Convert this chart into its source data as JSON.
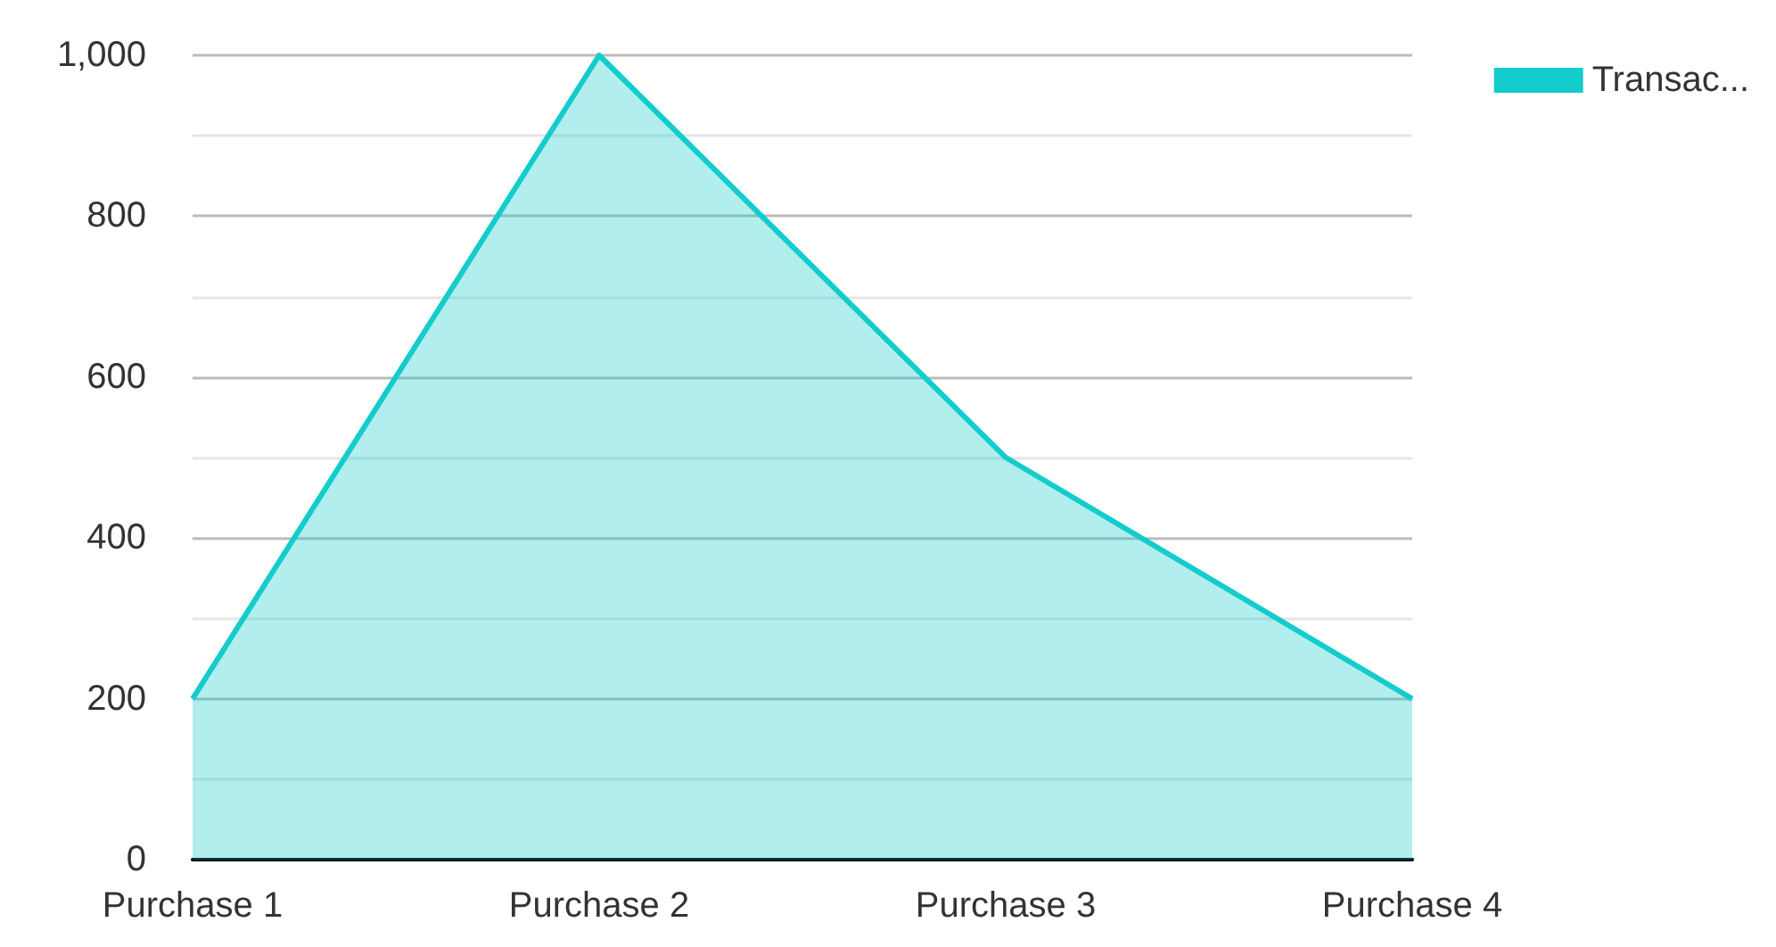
{
  "chart_data": {
    "type": "area",
    "categories": [
      "Purchase 1",
      "Purchase 2",
      "Purchase 3",
      "Purchase 4"
    ],
    "series": [
      {
        "name": "Transac...",
        "color": "#14cccc",
        "values": [
          200,
          1000,
          500,
          200
        ]
      }
    ],
    "ylim": [
      0,
      1000
    ],
    "yticks": [
      0,
      200,
      400,
      600,
      800,
      {
        "value": 1000,
        "label": "1,000"
      }
    ],
    "grid": "y",
    "legend": "top right",
    "marker": "none"
  }
}
